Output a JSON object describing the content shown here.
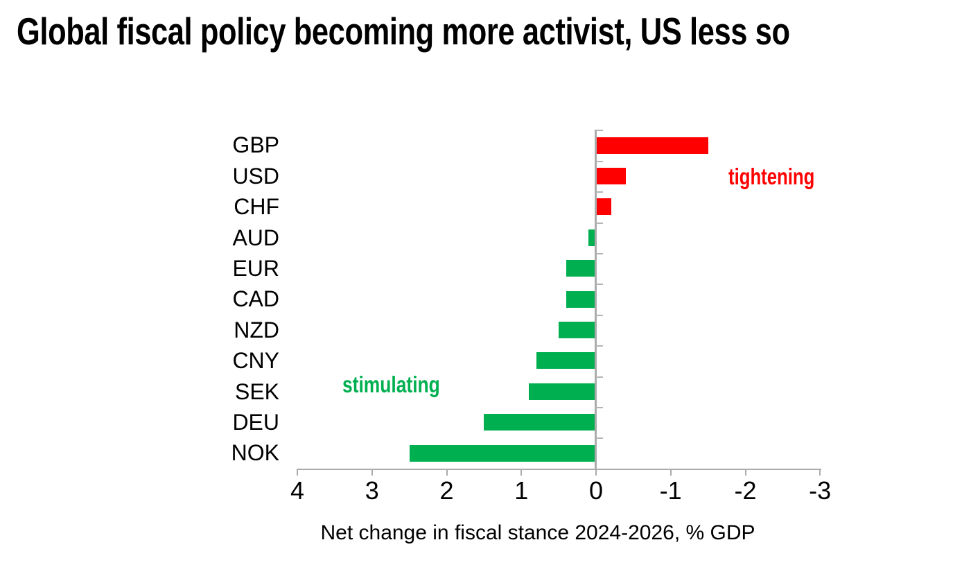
{
  "title": "Global fiscal policy becoming more activist, US less so",
  "chart_data": {
    "type": "bar",
    "orientation": "horizontal",
    "title": "Global fiscal policy becoming more activist, US less so",
    "xlabel": "Net change in fiscal stance 2024-2026, % GDP",
    "categories": [
      "GBP",
      "USD",
      "CHF",
      "AUD",
      "EUR",
      "CAD",
      "NZD",
      "CNY",
      "SEK",
      "DEU",
      "NOK"
    ],
    "values": [
      -1.5,
      -0.4,
      -0.2,
      0.1,
      0.4,
      0.4,
      0.5,
      0.8,
      0.9,
      1.5,
      2.5
    ],
    "x_ticks": [
      4,
      3,
      2,
      1,
      0,
      -1,
      -2,
      -3
    ],
    "xlim": [
      4,
      -3
    ],
    "x_axis_reversed": true,
    "grid": false,
    "legend": false,
    "annotations": [
      {
        "text": "tightening",
        "color": "#FF0000"
      },
      {
        "text": "stimulating",
        "color": "#00B050"
      }
    ],
    "colors": {
      "positive": "#00B050",
      "negative": "#FF0000",
      "axis": "#ABABAB",
      "tick": "#B5B5B5",
      "text": "#000000",
      "background": "#FFFFFF"
    }
  }
}
